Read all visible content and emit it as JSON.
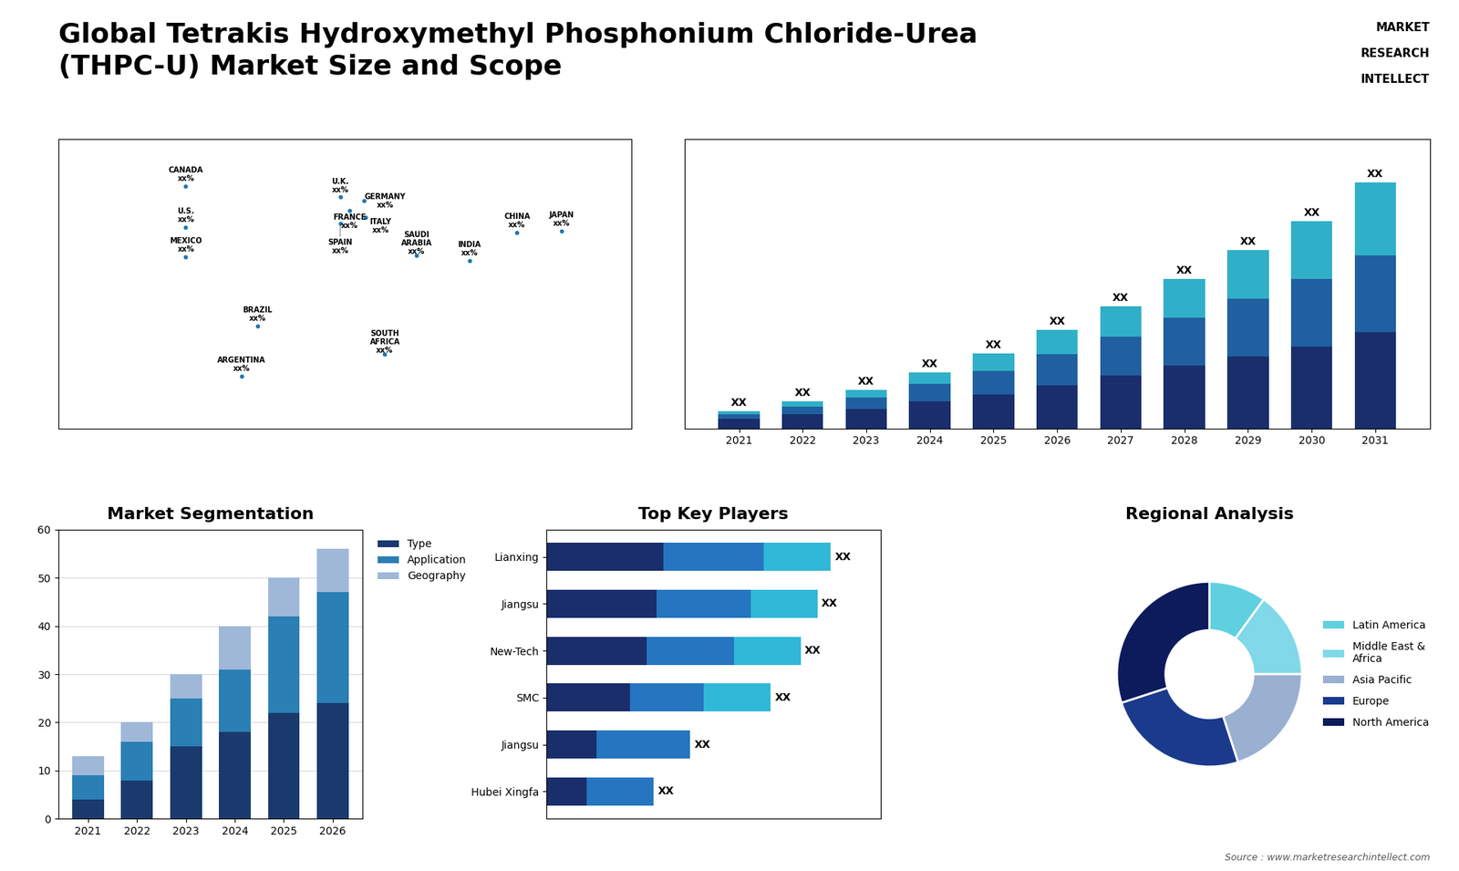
{
  "title": "Global Tetrakis Hydroxymethyl Phosphonium Chloride-Urea\n(THPC-U) Market Size and Scope",
  "annotations": [
    "Source : www.marketresearchintellect.com",
    "MARKET",
    "RESEARCH",
    "INTELLECT"
  ],
  "chart_data": [
    {
      "type": "map",
      "xlim": [
        -180,
        180
      ],
      "ylim": [
        -70,
        85
      ],
      "tick_labels": false,
      "annotations": [
        {
          "text": "U.S.\nxx%",
          "x": -100,
          "y": 38
        },
        {
          "text": "CANADA\nxx%",
          "x": -100,
          "y": 60
        },
        {
          "text": "MEXICO\nxx%",
          "x": -100,
          "y": 22
        },
        {
          "text": "BRAZIL\nxx%",
          "x": -55,
          "y": -15
        },
        {
          "text": "ARGENTINA\nxx%",
          "x": -65,
          "y": -42
        },
        {
          "text": "U.K.\nxx%",
          "x": -3,
          "y": 54
        },
        {
          "text": "FRANCE\nxx%",
          "x": 3,
          "y": 47
        },
        {
          "text": "GERMANY\nxx%",
          "x": 12,
          "y": 52
        },
        {
          "text": "SPAIN\nxx%",
          "x": -3,
          "y": 40
        },
        {
          "text": "ITALY\nxx%",
          "x": 13,
          "y": 43
        },
        {
          "text": "SAUDI\nARABIA\nxx%",
          "x": 45,
          "y": 23
        },
        {
          "text": "SOUTH\nAFRICA\nxx%",
          "x": 25,
          "y": -30
        },
        {
          "text": "CHINA\nxx%",
          "x": 108,
          "y": 35
        },
        {
          "text": "JAPAN\nxx%",
          "x": 136,
          "y": 36
        },
        {
          "text": "INDIA\nxx%",
          "x": 78,
          "y": 20
        }
      ]
    },
    {
      "type": "bar",
      "stacked": true,
      "categories": [
        "2021",
        "2022",
        "2023",
        "2024",
        "2025",
        "2026",
        "2027",
        "2028",
        "2029",
        "2030",
        "2031"
      ],
      "series": [
        {
          "color": "#1a2e6c",
          "values": [
            1,
            1.5,
            2,
            2.8,
            3.5,
            4.5,
            5.5,
            6.5,
            7.5,
            8.5,
            10
          ]
        },
        {
          "color": "#2060a0",
          "values": [
            0.5,
            0.8,
            1.2,
            1.8,
            2.5,
            3.2,
            4.0,
            5.0,
            6.0,
            7.0,
            8.0
          ]
        },
        {
          "color": "#30b0c8",
          "values": [
            0.3,
            0.5,
            0.8,
            1.2,
            1.8,
            2.5,
            3.2,
            4.0,
            5.0,
            6.0,
            7.5
          ],
          "value_labels": [
            "XX",
            "XX",
            "XX",
            "XX",
            "XX",
            "XX",
            "XX",
            "XX",
            "XX",
            "XX",
            "XX"
          ]
        }
      ],
      "ylim": [
        0,
        30
      ],
      "tick_labels": "x"
    },
    {
      "type": "bar",
      "stacked": true,
      "title": "Market Segmentation",
      "categories": [
        "2021",
        "2022",
        "2023",
        "2024",
        "2025",
        "2026"
      ],
      "series": [
        {
          "name": "Type",
          "color": "#1a3a6e",
          "values": [
            4,
            8,
            15,
            18,
            22,
            24
          ]
        },
        {
          "name": "Application",
          "color": "#2a7fb5",
          "values": [
            5,
            8,
            10,
            13,
            20,
            23
          ]
        },
        {
          "name": "Geography",
          "color": "#9fb8d8",
          "values": [
            4,
            4,
            5,
            9,
            8,
            9
          ]
        }
      ],
      "ylim": [
        0,
        60
      ],
      "yticks": [
        0,
        10,
        20,
        30,
        40,
        50,
        60
      ],
      "grid": true,
      "legend": "upper left"
    },
    {
      "type": "bar",
      "orientation": "horizontal",
      "stacked": true,
      "title": "Top Key Players",
      "categories": [
        "Lianxing",
        "Jiangsu",
        "New-Tech",
        "SMC",
        "Jiangsu",
        "Hubei Xingfa"
      ],
      "series": [
        {
          "color": "#1a2e6c",
          "values": [
            35,
            33,
            30,
            25,
            15,
            12
          ]
        },
        {
          "color": "#2575c0",
          "values": [
            30,
            28,
            26,
            22,
            28,
            20
          ]
        },
        {
          "color": "#30b8d8",
          "values": [
            20,
            20,
            20,
            20,
            0,
            0
          ],
          "value_labels": [
            "XX",
            "XX",
            "XX",
            "XX",
            "XX",
            "XX"
          ]
        }
      ],
      "xlim": [
        0,
        100
      ],
      "tick_labels": "y"
    },
    {
      "type": "pie",
      "title": "Regional Analysis",
      "categories": [
        "Latin America",
        "Middle East &\nAfrica",
        "Asia Pacific",
        "Europe",
        "North America"
      ],
      "values": [
        10,
        15,
        20,
        25,
        30
      ],
      "colors": [
        "#60d0e0",
        "#80d8e8",
        "#9ab0d0",
        "#1a3a8c",
        "#0d1a5c"
      ],
      "legend": "center left"
    }
  ]
}
